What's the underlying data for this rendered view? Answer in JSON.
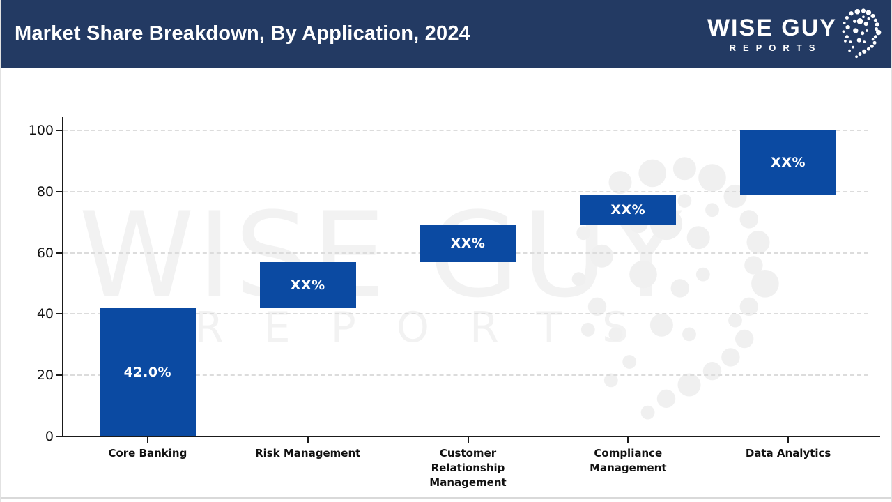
{
  "header": {
    "title": "Market Share Breakdown, By Application, 2024",
    "background_color": "#233a63",
    "logo": {
      "line1": "WISE GUY",
      "line2": "REPORTS"
    }
  },
  "watermark": {
    "line1": "WISE GUY",
    "line2": "REPORTS"
  },
  "chart_data": {
    "type": "bar",
    "subtype": "waterfall",
    "title": "Market Share Breakdown, By Application, 2024",
    "xlabel": "",
    "ylabel": "",
    "ylim": [
      0,
      100
    ],
    "yticks": [
      0,
      20,
      40,
      60,
      80,
      100
    ],
    "grid": "horizontal dashed",
    "legend": "none",
    "bar_color": "#0b4aa2",
    "value_label_color": "#ffffff",
    "categories": [
      "Core Banking",
      "Risk Management",
      "Customer Relationship Management",
      "Compliance Management",
      "Data Analytics"
    ],
    "segments": [
      {
        "label": "Core Banking",
        "axis_label": "Core Banking",
        "start": 0,
        "end": 42,
        "value": 42.0,
        "value_label": "42.0%"
      },
      {
        "label": "Risk Management",
        "axis_label": "Risk Management",
        "start": 42,
        "end": 57,
        "value": 15,
        "value_label": "XX%"
      },
      {
        "label": "Customer Relationship Management",
        "axis_label": "Customer\nRelationship\nManagement",
        "start": 57,
        "end": 69,
        "value": 12,
        "value_label": "XX%"
      },
      {
        "label": "Compliance Management",
        "axis_label": "Compliance\nManagement",
        "start": 69,
        "end": 79,
        "value": 10,
        "value_label": "XX%"
      },
      {
        "label": "Data Analytics",
        "axis_label": "Data Analytics",
        "start": 79,
        "end": 100,
        "value": 21,
        "value_label": "XX%"
      }
    ]
  }
}
